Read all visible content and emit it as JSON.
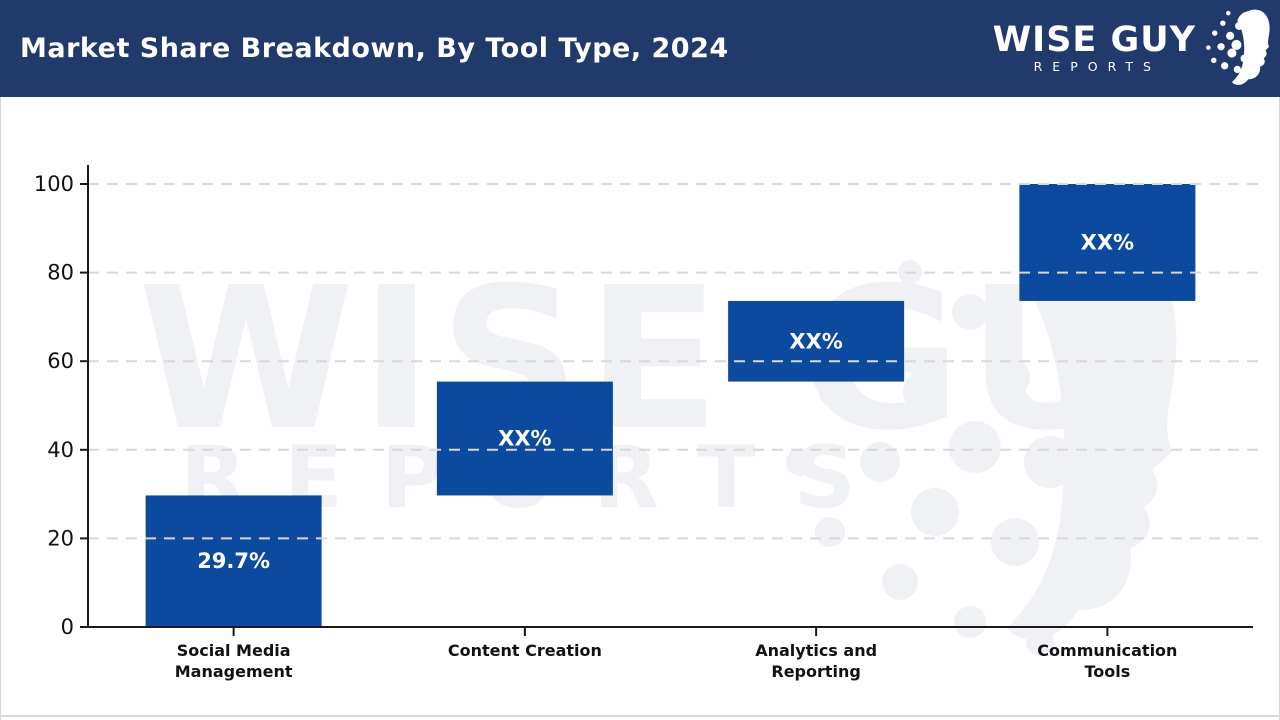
{
  "header": {
    "title": "Market Share Breakdown, By Tool Type, 2024",
    "logo": {
      "line1": "WISE GUY",
      "line2": "REPORTS"
    }
  },
  "watermark": {
    "line1": "WISE GU",
    "line2": "R E P O R T S"
  },
  "colors": {
    "header_bg": "#203A6B",
    "bar_blue": "#0B4A9E",
    "grid_gray": "#D8D8D8",
    "axis_black": "#1A1A1A",
    "watermark_gray": "#EFF1F4"
  },
  "chart_data": {
    "type": "bar",
    "subtype": "waterfall",
    "title": "Market Share Breakdown, By Tool Type, 2024",
    "categories": [
      [
        "Social Media",
        "Management"
      ],
      [
        "Content Creation"
      ],
      [
        "Analytics and",
        "Reporting"
      ],
      [
        "Communication",
        "Tools"
      ]
    ],
    "segments": [
      {
        "start": 0,
        "end": 29.7,
        "label": "29.7%"
      },
      {
        "start": 29.7,
        "end": 55.4,
        "label": "XX%"
      },
      {
        "start": 55.4,
        "end": 73.6,
        "label": "XX%"
      },
      {
        "start": 73.6,
        "end": 100,
        "label": "XX%"
      }
    ],
    "y_ticks": [
      0,
      20,
      40,
      60,
      80,
      100
    ],
    "ylim": [
      0,
      104
    ],
    "xlabel": "",
    "ylabel": "",
    "grid": "dashed-horizontal",
    "legend": "none"
  }
}
